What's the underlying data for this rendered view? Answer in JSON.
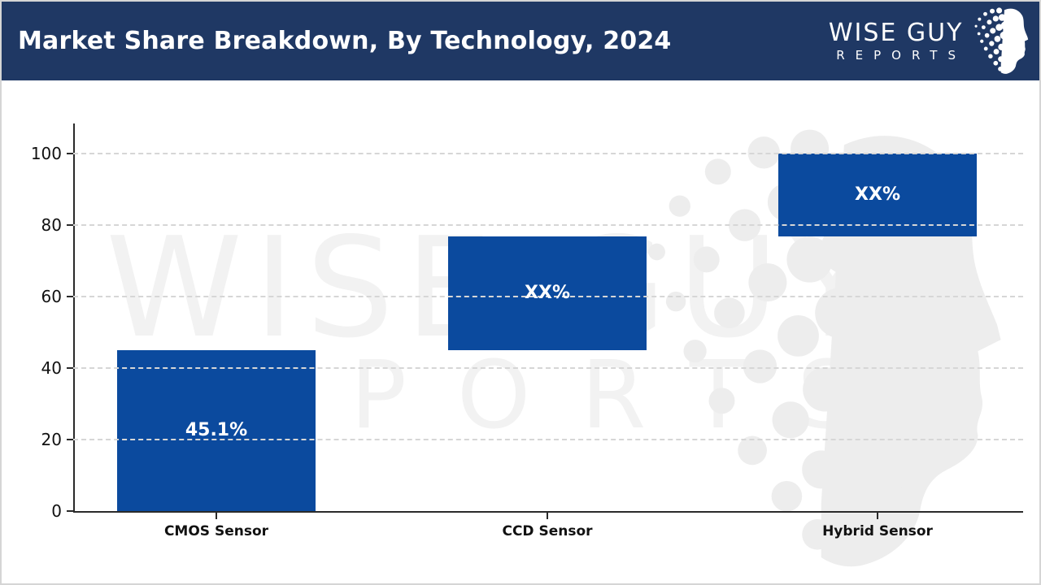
{
  "header": {
    "title": "Market Share Breakdown, By Technology, 2024",
    "logo": {
      "line1": "WISE GUY",
      "line2": "REPORTS"
    }
  },
  "watermark": {
    "line1": "WISE GUY",
    "line2": "REPORTS"
  },
  "chart_data": {
    "type": "bar",
    "variant": "floating-waterfall",
    "title": "Market Share Breakdown, By Technology, 2024",
    "categories": [
      "CMOS Sensor",
      "CCD Sensor",
      "Hybrid Sensor"
    ],
    "segments": [
      {
        "category": "CMOS Sensor",
        "start": 0,
        "end": 45.1,
        "label": "45.1%"
      },
      {
        "category": "CCD Sensor",
        "start": 45.1,
        "end": 76.9,
        "label": "XX%"
      },
      {
        "category": "Hybrid Sensor",
        "start": 76.9,
        "end": 100,
        "label": "XX%"
      }
    ],
    "yticks": [
      0,
      20,
      40,
      60,
      80,
      100
    ],
    "ylim": [
      0,
      106
    ],
    "grid": "horizontal-dashed-above-bars",
    "legend": "none",
    "xlabel": "",
    "ylabel": "",
    "bar_color": "#0b4a9e",
    "bar_label_color": "#ffffff",
    "header_color": "#1f3864",
    "grid_color": "#d6d6d6",
    "axis_color": "#2a2a2a"
  }
}
